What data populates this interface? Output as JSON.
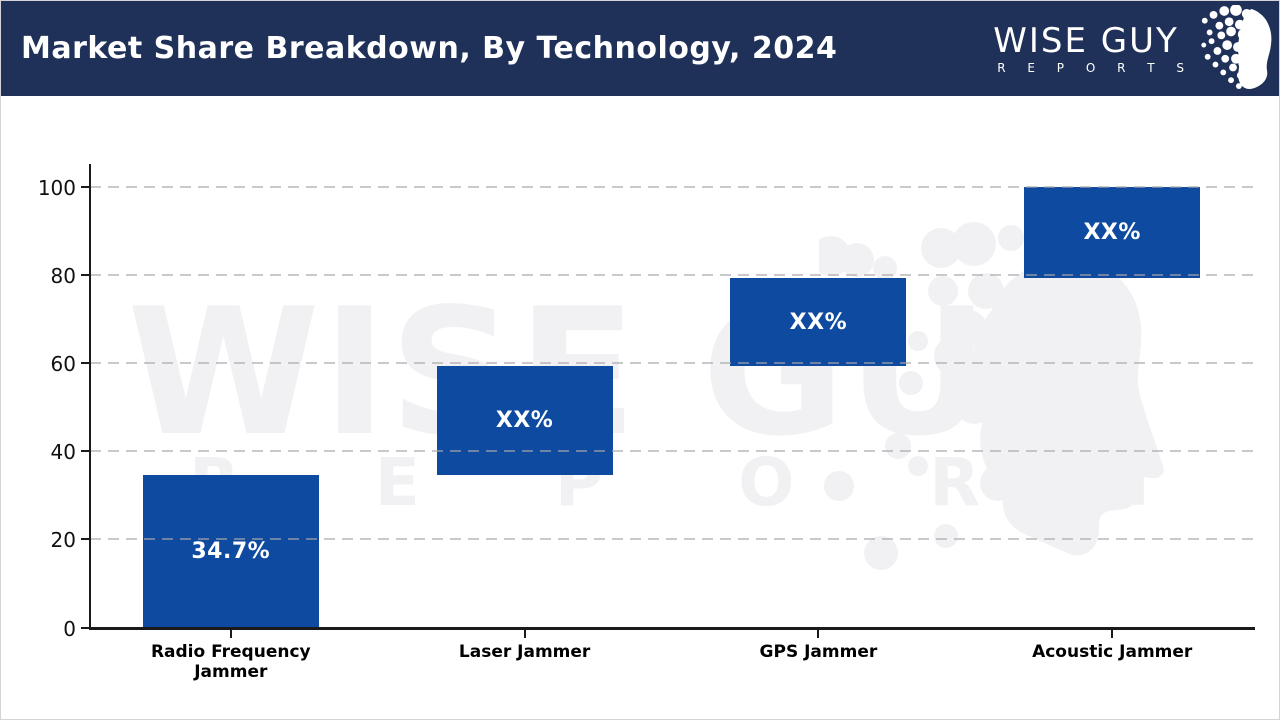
{
  "header": {
    "title": "Market Share Breakdown, By Technology, 2024",
    "bg_color": "#1f3158",
    "logo": {
      "line1": "WISE GUY",
      "line2": "R E P O R T S"
    }
  },
  "watermark": {
    "line1": "WISE GUY",
    "line2": "R E P O R T S"
  },
  "chart_data": {
    "type": "bar",
    "subtype": "waterfall",
    "title": "Market Share Breakdown, By Technology, 2024",
    "categories": [
      "Radio Frequency Jammer",
      "Laser Jammer",
      "GPS Jammer",
      "Acoustic Jammer"
    ],
    "bars": [
      {
        "category": "Radio Frequency Jammer",
        "start": 0,
        "end": 34.7,
        "label": "34.7%"
      },
      {
        "category": "Laser Jammer",
        "start": 34.7,
        "end": 59.3,
        "label": "XX%"
      },
      {
        "category": "GPS Jammer",
        "start": 59.3,
        "end": 79.3,
        "label": "XX%"
      },
      {
        "category": "Acoustic Jammer",
        "start": 79.3,
        "end": 100,
        "label": "XX%"
      }
    ],
    "yticks": [
      0,
      20,
      40,
      60,
      80,
      100
    ],
    "ylim": [
      0,
      105
    ],
    "xlabel": "",
    "ylabel": "",
    "grid": "dashed-horizontal",
    "legend": "none",
    "bar_color": "#0d4aa0",
    "bar_label_color": "#ffffff",
    "axis_color": "#1a1a1a",
    "gridline_color": "#a8a8ac"
  }
}
